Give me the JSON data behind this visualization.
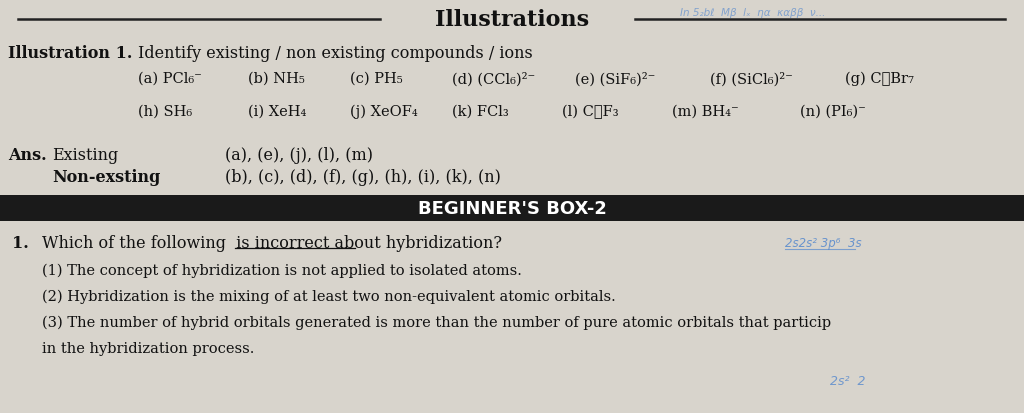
{
  "bg_color": "#d8d4cc",
  "title": "Illustrations",
  "illustration_label": "Illustration 1.",
  "illustration_text": "Identify existing / non existing compounds / ions",
  "row1": [
    "(a) PCl₆⁻",
    "(b) NH₅",
    "(c) PH₅",
    "(d) (CCl₆)²⁻",
    "(e) (SiF₆)²⁻",
    "(f) (SiCl₆)²⁻",
    "(g) CℓBr₇"
  ],
  "row2": [
    "(h) SH₆",
    "(i) XeH₄",
    "(j) XeOF₄",
    "(k) FCl₃",
    "(l) CℓF₃",
    "(m) BH₄⁻",
    "(n) (PI₆)⁻"
  ],
  "ans_existing_label": "Ans.",
  "ans_existing_word": "Existing",
  "ans_existing": "(a), (e), (j), (l), (m)",
  "ans_nonexisting_label": "Non-exsting",
  "ans_nonexisting": "(b), (c), (d), (f), (g), (h), (i), (k), (n)",
  "box_title": "BEGINNER'S BOX-2",
  "box_bg": "#1a1a1a",
  "box_text_color": "#ffffff",
  "q1_label": "1.",
  "q1_text": "Which of the following  is incorrect about hybridization?",
  "q1_opt1": "(1) The concept of hybridization is not applied to isolated atoms.",
  "q1_opt2": "(2) Hybridization is the mixing of at least two non-equivalent atomic orbitals.",
  "q1_opt3": "(3) The number of hybrid orbitals generated is more than the number of pure atomic orbitals that particip",
  "q1_opt3b": "in the hybridization process.",
  "line_color": "#222222",
  "text_color": "#111111",
  "handwriting_color": "#5588cc"
}
